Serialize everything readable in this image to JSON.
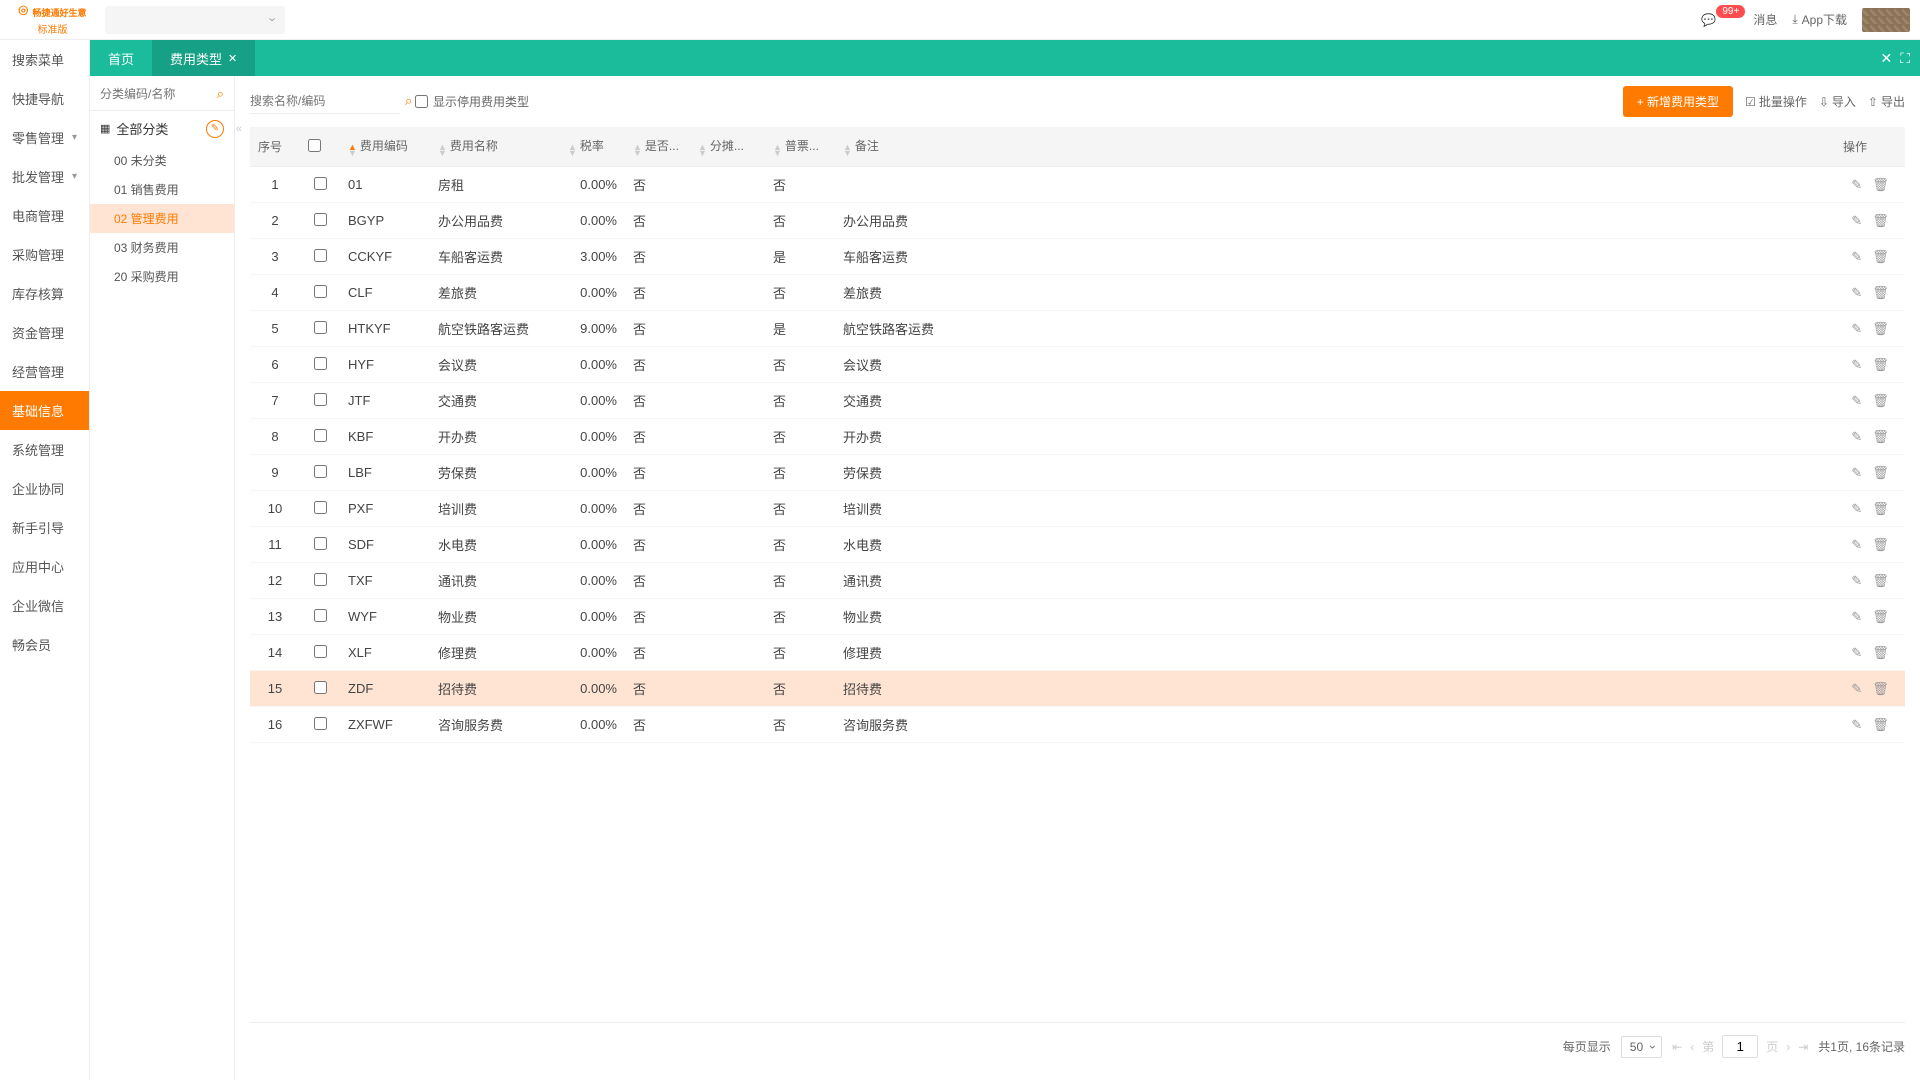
{
  "header": {
    "logo_text": "畅捷通好生意",
    "logo_sub": "标准版",
    "message_label": "消息",
    "message_badge": "99+",
    "app_download": "App下载"
  },
  "sidebar": {
    "items": [
      {
        "label": "搜索菜单",
        "has_chev": false
      },
      {
        "label": "快捷导航",
        "has_chev": false
      },
      {
        "label": "零售管理",
        "has_chev": true
      },
      {
        "label": "批发管理",
        "has_chev": true
      },
      {
        "label": "电商管理",
        "has_chev": false
      },
      {
        "label": "采购管理",
        "has_chev": false
      },
      {
        "label": "库存核算",
        "has_chev": false
      },
      {
        "label": "资金管理",
        "has_chev": false
      },
      {
        "label": "经营管理",
        "has_chev": false
      },
      {
        "label": "基础信息",
        "has_chev": false,
        "active": true
      },
      {
        "label": "系统管理",
        "has_chev": false
      },
      {
        "label": "企业协同",
        "has_chev": false
      },
      {
        "label": "新手引导",
        "has_chev": false
      },
      {
        "label": "应用中心",
        "has_chev": false
      },
      {
        "label": "企业微信",
        "has_chev": false
      },
      {
        "label": "畅会员",
        "has_chev": false
      }
    ]
  },
  "tabs": [
    {
      "label": "首页",
      "closable": false,
      "active": false
    },
    {
      "label": "费用类型",
      "closable": true,
      "active": true
    }
  ],
  "category": {
    "search_placeholder": "分类编码/名称",
    "header_label": "全部分类",
    "items": [
      {
        "label": "00 未分类",
        "selected": false
      },
      {
        "label": "01 销售费用",
        "selected": false
      },
      {
        "label": "02 管理费用",
        "selected": true
      },
      {
        "label": "03 财务费用",
        "selected": false
      },
      {
        "label": "20 采购费用",
        "selected": false
      }
    ]
  },
  "toolbar": {
    "search_placeholder": "搜索名称/编码",
    "show_disabled_label": "显示停用费用类型",
    "add_button": "+ 新增费用类型",
    "batch_label": "批量操作",
    "import_label": "导入",
    "export_label": "导出"
  },
  "table": {
    "columns": {
      "seq": "序号",
      "code": "费用编码",
      "name": "费用名称",
      "rate": "税率",
      "deduct": "是否...",
      "share": "分摊...",
      "ticket": "普票...",
      "remark": "备注",
      "op": "操作"
    },
    "rows": [
      {
        "seq": "1",
        "code": "01",
        "name": "房租",
        "rate": "0.00%",
        "deduct": "否",
        "share": "",
        "ticket": "否",
        "remark": ""
      },
      {
        "seq": "2",
        "code": "BGYP",
        "name": "办公用品费",
        "rate": "0.00%",
        "deduct": "否",
        "share": "",
        "ticket": "否",
        "remark": "办公用品费"
      },
      {
        "seq": "3",
        "code": "CCKYF",
        "name": "车船客运费",
        "rate": "3.00%",
        "deduct": "否",
        "share": "",
        "ticket": "是",
        "remark": "车船客运费"
      },
      {
        "seq": "4",
        "code": "CLF",
        "name": "差旅费",
        "rate": "0.00%",
        "deduct": "否",
        "share": "",
        "ticket": "否",
        "remark": "差旅费"
      },
      {
        "seq": "5",
        "code": "HTKYF",
        "name": "航空铁路客运费",
        "rate": "9.00%",
        "deduct": "否",
        "share": "",
        "ticket": "是",
        "remark": "航空铁路客运费"
      },
      {
        "seq": "6",
        "code": "HYF",
        "name": "会议费",
        "rate": "0.00%",
        "deduct": "否",
        "share": "",
        "ticket": "否",
        "remark": "会议费"
      },
      {
        "seq": "7",
        "code": "JTF",
        "name": "交通费",
        "rate": "0.00%",
        "deduct": "否",
        "share": "",
        "ticket": "否",
        "remark": "交通费"
      },
      {
        "seq": "8",
        "code": "KBF",
        "name": "开办费",
        "rate": "0.00%",
        "deduct": "否",
        "share": "",
        "ticket": "否",
        "remark": "开办费"
      },
      {
        "seq": "9",
        "code": "LBF",
        "name": "劳保费",
        "rate": "0.00%",
        "deduct": "否",
        "share": "",
        "ticket": "否",
        "remark": "劳保费"
      },
      {
        "seq": "10",
        "code": "PXF",
        "name": "培训费",
        "rate": "0.00%",
        "deduct": "否",
        "share": "",
        "ticket": "否",
        "remark": "培训费"
      },
      {
        "seq": "11",
        "code": "SDF",
        "name": "水电费",
        "rate": "0.00%",
        "deduct": "否",
        "share": "",
        "ticket": "否",
        "remark": "水电费"
      },
      {
        "seq": "12",
        "code": "TXF",
        "name": "通讯费",
        "rate": "0.00%",
        "deduct": "否",
        "share": "",
        "ticket": "否",
        "remark": "通讯费"
      },
      {
        "seq": "13",
        "code": "WYF",
        "name": "物业费",
        "rate": "0.00%",
        "deduct": "否",
        "share": "",
        "ticket": "否",
        "remark": "物业费"
      },
      {
        "seq": "14",
        "code": "XLF",
        "name": "修理费",
        "rate": "0.00%",
        "deduct": "否",
        "share": "",
        "ticket": "否",
        "remark": "修理费"
      },
      {
        "seq": "15",
        "code": "ZDF",
        "name": "招待费",
        "rate": "0.00%",
        "deduct": "否",
        "share": "",
        "ticket": "否",
        "remark": "招待费",
        "highlighted": true
      },
      {
        "seq": "16",
        "code": "ZXFWF",
        "name": "咨询服务费",
        "rate": "0.00%",
        "deduct": "否",
        "share": "",
        "ticket": "否",
        "remark": "咨询服务费"
      }
    ]
  },
  "pagination": {
    "page_size_label": "每页显示",
    "page_size": "50",
    "page_label_prefix": "第",
    "page_current": "1",
    "page_label_suffix": "页",
    "summary": "共1页, 16条记录"
  }
}
